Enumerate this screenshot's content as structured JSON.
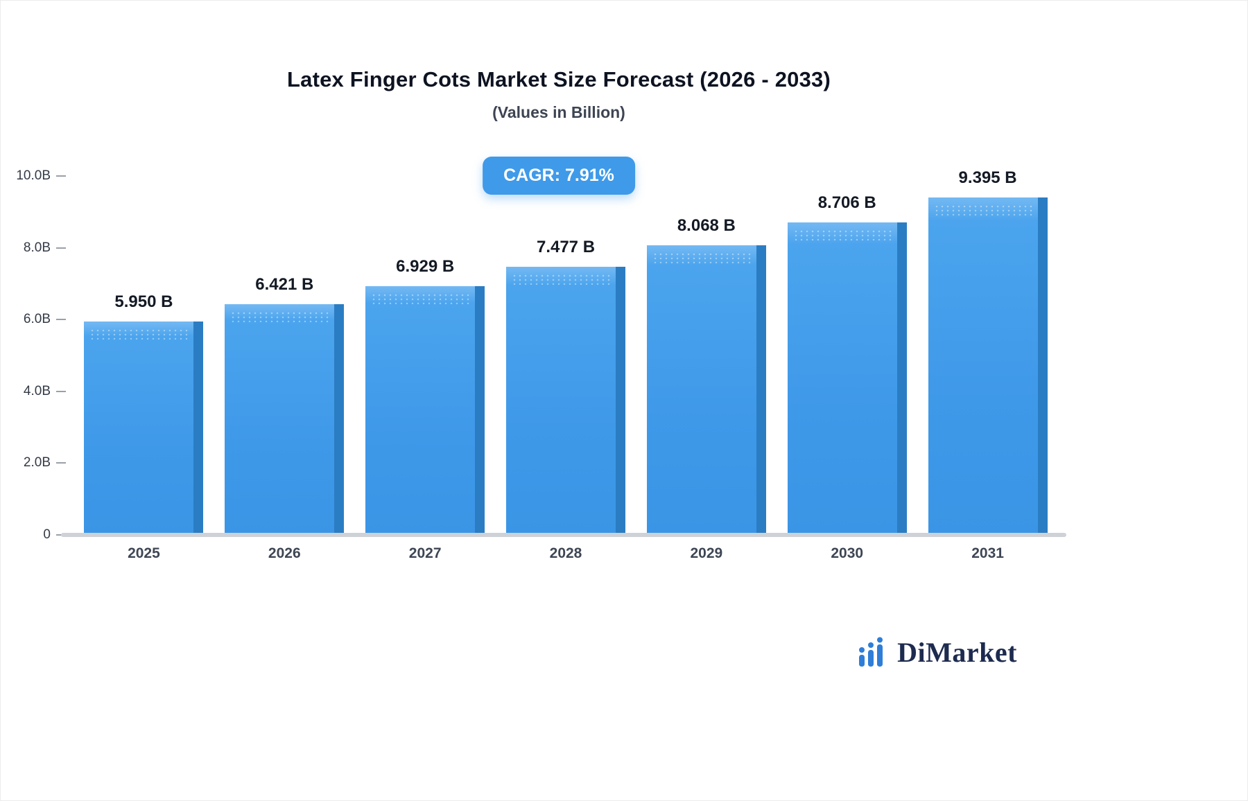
{
  "page": {
    "title": "Latex Finger Cots Market Size Forecast (2026 - 2033)",
    "subtitle": "(Values in Billion)",
    "cagr_label": "CAGR: 7.91%"
  },
  "brand": {
    "name": "DiMarket",
    "icon": "bar-chart-logo-icon"
  },
  "chart_data": {
    "type": "bar",
    "title": "Latex Finger Cots Market Size Forecast (2026 - 2033)",
    "subtitle": "(Values in Billion)",
    "annotation": "CAGR: 7.91%",
    "categories": [
      "2025",
      "2026",
      "2027",
      "2028",
      "2029",
      "2030",
      "2031"
    ],
    "values": [
      5.95,
      6.421,
      6.929,
      7.477,
      8.068,
      8.706,
      9.395
    ],
    "value_labels": [
      "5.950 B",
      "6.421 B",
      "6.929 B",
      "7.477 B",
      "8.068 B",
      "8.706 B",
      "9.395 B"
    ],
    "xlabel": "",
    "ylabel": "",
    "ylim": [
      0,
      10
    ],
    "yticks": [
      {
        "label": "0",
        "value": 0
      },
      {
        "label": "2.0B",
        "value": 2
      },
      {
        "label": "4.0B",
        "value": 4
      },
      {
        "label": "6.0B",
        "value": 6
      },
      {
        "label": "8.0B",
        "value": 8
      },
      {
        "label": "10.0B",
        "value": 10
      }
    ],
    "grid": false,
    "legend_position": "none",
    "colors": {
      "bar_face_top": "#74b9f3",
      "bar_face_bottom": "#3b95e6",
      "bar_side": "#2b7dc3",
      "badge_bg": "#3f9ae9",
      "badge_text": "#ffffff",
      "title_text": "#0d1321",
      "axis_text": "#333a45",
      "brand_text": "#1d2b4f",
      "brand_icon": "#2e7ed8",
      "baseline": "#ced2d7"
    }
  }
}
